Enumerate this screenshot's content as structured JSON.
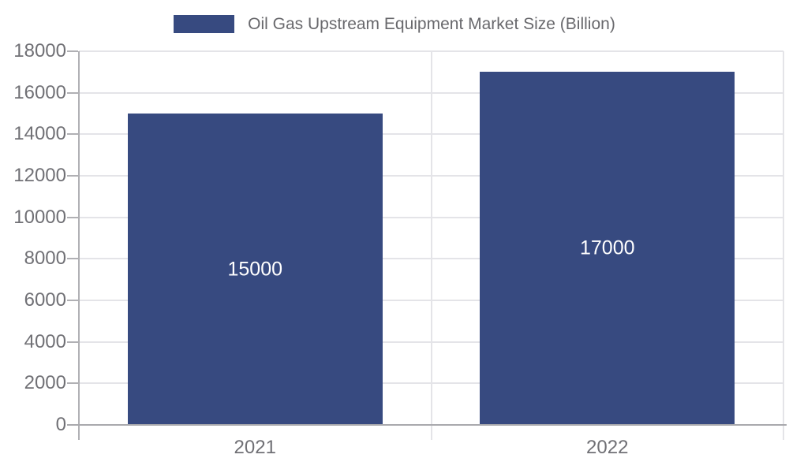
{
  "chart_data": {
    "type": "bar",
    "title": "Oil Gas Upstream Equipment Market Size (Billion)",
    "legend": {
      "label": "Oil Gas Upstream Equipment Market Size (Billion)",
      "position": "top-center"
    },
    "categories": [
      "2021",
      "2022"
    ],
    "values": [
      15000,
      17000
    ],
    "data_labels": [
      "15000",
      "17000"
    ],
    "data_label_position": "inside-center",
    "xlabel": "",
    "ylabel": "",
    "ylim": [
      0,
      18000
    ],
    "ytick_step": 2000,
    "ytick_labels": [
      "0",
      "2000",
      "4000",
      "6000",
      "8000",
      "10000",
      "12000",
      "14000",
      "16000",
      "18000"
    ],
    "grid": "horizontal",
    "legend_position": "top",
    "colors": {
      "bar": "#374a80",
      "bar_label_text": "#ffffff",
      "axis_text": "#707075",
      "legend_text": "#68686c",
      "gridline": "#e4e4e8",
      "category_line": "#e4e4e8",
      "x_axis_line": "#a9a9ad",
      "y_axis_line": "#b0b0b4",
      "background": "#ffffff"
    }
  }
}
